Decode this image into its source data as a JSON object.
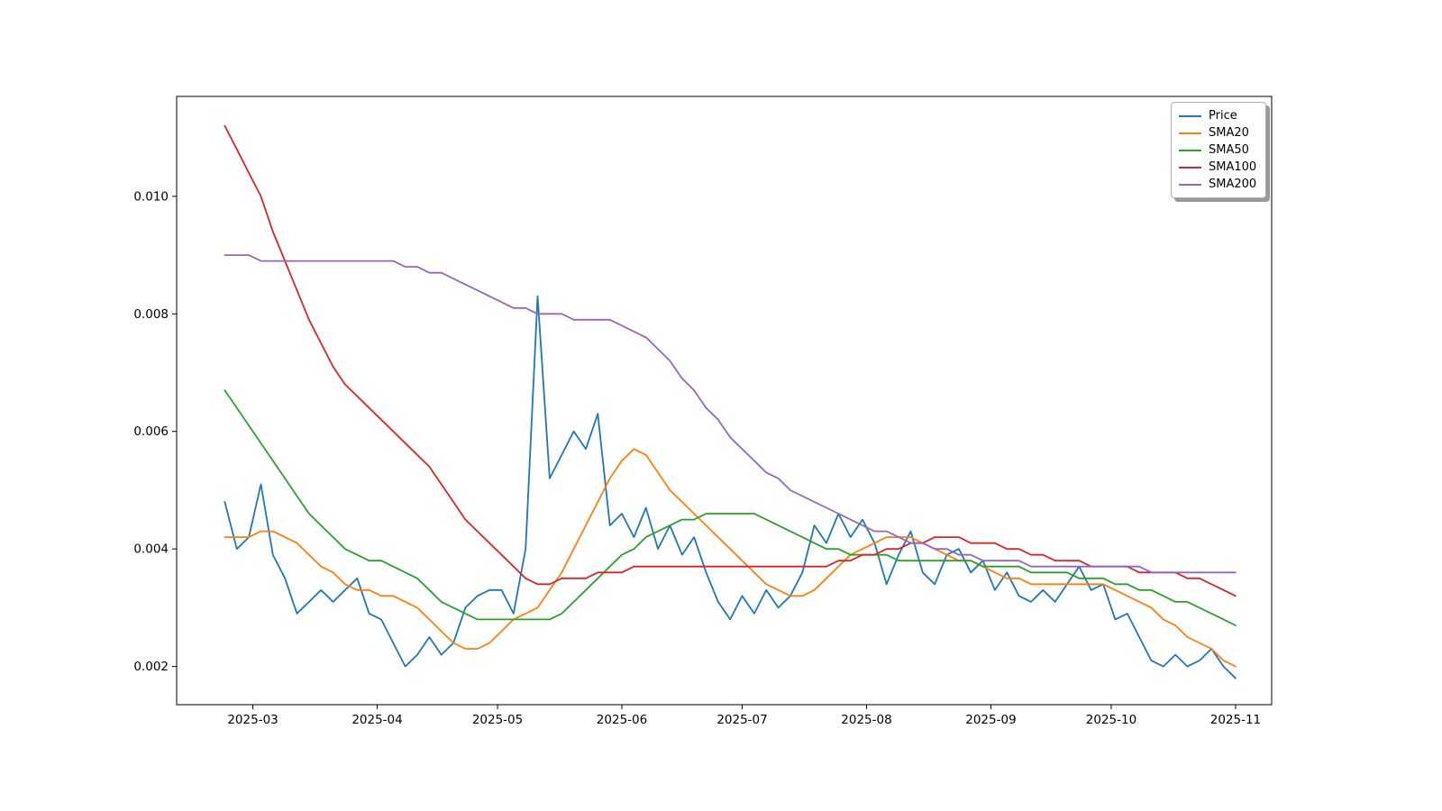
{
  "figure": {
    "background": "#ffffff",
    "plot_border_color": "#000000",
    "tick_color": "#000000"
  },
  "chart_data": {
    "type": "line",
    "title": "",
    "xlabel": "",
    "ylabel": "",
    "grid": false,
    "legend": {
      "position": "upper right",
      "entries": [
        "Price",
        "SMA20",
        "SMA50",
        "SMA100",
        "SMA200"
      ]
    },
    "xlim": [
      "2025-02-10",
      "2025-11-10"
    ],
    "ylim": [
      0.00135,
      0.0117
    ],
    "x_ticks": [
      {
        "label": "2025-03",
        "date": "2025-03-01"
      },
      {
        "label": "2025-04",
        "date": "2025-04-01"
      },
      {
        "label": "2025-05",
        "date": "2025-05-01"
      },
      {
        "label": "2025-06",
        "date": "2025-06-01"
      },
      {
        "label": "2025-07",
        "date": "2025-07-01"
      },
      {
        "label": "2025-08",
        "date": "2025-08-01"
      },
      {
        "label": "2025-09",
        "date": "2025-09-01"
      },
      {
        "label": "2025-10",
        "date": "2025-10-01"
      },
      {
        "label": "2025-11",
        "date": "2025-11-01"
      }
    ],
    "y_ticks": [
      {
        "label": "0.002",
        "value": 0.002
      },
      {
        "label": "0.004",
        "value": 0.004
      },
      {
        "label": "0.006",
        "value": 0.006
      },
      {
        "label": "0.008",
        "value": 0.008
      },
      {
        "label": "0.010",
        "value": 0.01
      }
    ],
    "x": [
      "2025-02-22",
      "2025-02-25",
      "2025-02-28",
      "2025-03-03",
      "2025-03-06",
      "2025-03-09",
      "2025-03-12",
      "2025-03-15",
      "2025-03-18",
      "2025-03-21",
      "2025-03-24",
      "2025-03-27",
      "2025-03-30",
      "2025-04-02",
      "2025-04-05",
      "2025-04-08",
      "2025-04-11",
      "2025-04-14",
      "2025-04-17",
      "2025-04-20",
      "2025-04-23",
      "2025-04-26",
      "2025-04-29",
      "2025-05-02",
      "2025-05-05",
      "2025-05-08",
      "2025-05-11",
      "2025-05-14",
      "2025-05-17",
      "2025-05-20",
      "2025-05-23",
      "2025-05-26",
      "2025-05-29",
      "2025-06-01",
      "2025-06-04",
      "2025-06-07",
      "2025-06-10",
      "2025-06-13",
      "2025-06-16",
      "2025-06-19",
      "2025-06-22",
      "2025-06-25",
      "2025-06-28",
      "2025-07-01",
      "2025-07-04",
      "2025-07-07",
      "2025-07-10",
      "2025-07-13",
      "2025-07-16",
      "2025-07-19",
      "2025-07-22",
      "2025-07-25",
      "2025-07-28",
      "2025-07-31",
      "2025-08-03",
      "2025-08-06",
      "2025-08-09",
      "2025-08-12",
      "2025-08-15",
      "2025-08-18",
      "2025-08-21",
      "2025-08-24",
      "2025-08-27",
      "2025-08-30",
      "2025-09-02",
      "2025-09-05",
      "2025-09-08",
      "2025-09-11",
      "2025-09-14",
      "2025-09-17",
      "2025-09-20",
      "2025-09-23",
      "2025-09-26",
      "2025-09-29",
      "2025-10-02",
      "2025-10-05",
      "2025-10-08",
      "2025-10-11",
      "2025-10-14",
      "2025-10-17",
      "2025-10-20",
      "2025-10-23",
      "2025-10-26",
      "2025-10-29",
      "2025-11-01"
    ],
    "series": [
      {
        "name": "Price",
        "color": "#1f77b4",
        "values": [
          0.0048,
          0.004,
          0.0042,
          0.0051,
          0.0039,
          0.0035,
          0.0029,
          0.0031,
          0.0033,
          0.0031,
          0.0033,
          0.0035,
          0.0029,
          0.0028,
          0.0024,
          0.002,
          0.0022,
          0.0025,
          0.0022,
          0.0024,
          0.003,
          0.0032,
          0.0033,
          0.0033,
          0.0029,
          0.004,
          0.0083,
          0.0052,
          0.0056,
          0.006,
          0.0057,
          0.0063,
          0.0044,
          0.0046,
          0.0042,
          0.0047,
          0.004,
          0.0044,
          0.0039,
          0.0042,
          0.0036,
          0.0031,
          0.0028,
          0.0032,
          0.0029,
          0.0033,
          0.003,
          0.0032,
          0.0036,
          0.0044,
          0.0041,
          0.0046,
          0.0042,
          0.0045,
          0.0041,
          0.0034,
          0.0039,
          0.0043,
          0.0036,
          0.0034,
          0.0039,
          0.004,
          0.0036,
          0.0038,
          0.0033,
          0.0036,
          0.0032,
          0.0031,
          0.0033,
          0.0031,
          0.0034,
          0.0037,
          0.0033,
          0.0034,
          0.0028,
          0.0029,
          0.0025,
          0.0021,
          0.002,
          0.0022,
          0.002,
          0.0021,
          0.0023,
          0.002,
          0.0018
        ]
      },
      {
        "name": "SMA20",
        "color": "#ff7f0e",
        "values": [
          0.0042,
          0.0042,
          0.0042,
          0.0043,
          0.0043,
          0.0042,
          0.0041,
          0.0039,
          0.0037,
          0.0036,
          0.0034,
          0.0033,
          0.0033,
          0.0032,
          0.0032,
          0.0031,
          0.003,
          0.0028,
          0.0026,
          0.0024,
          0.0023,
          0.0023,
          0.0024,
          0.0026,
          0.0028,
          0.0029,
          0.003,
          0.0033,
          0.0036,
          0.004,
          0.0044,
          0.0048,
          0.0052,
          0.0055,
          0.0057,
          0.0056,
          0.0053,
          0.005,
          0.0048,
          0.0046,
          0.0044,
          0.0042,
          0.004,
          0.0038,
          0.0036,
          0.0034,
          0.0033,
          0.0032,
          0.0032,
          0.0033,
          0.0035,
          0.0037,
          0.0039,
          0.004,
          0.0041,
          0.0042,
          0.0042,
          0.0042,
          0.0041,
          0.004,
          0.0039,
          0.0038,
          0.0038,
          0.0037,
          0.0036,
          0.0035,
          0.0035,
          0.0034,
          0.0034,
          0.0034,
          0.0034,
          0.0034,
          0.0034,
          0.0034,
          0.0033,
          0.0032,
          0.0031,
          0.003,
          0.0028,
          0.0027,
          0.0025,
          0.0024,
          0.0023,
          0.0021,
          0.002
        ]
      },
      {
        "name": "SMA50",
        "color": "#2ca02c",
        "values": [
          0.0067,
          0.0064,
          0.0061,
          0.0058,
          0.0055,
          0.0052,
          0.0049,
          0.0046,
          0.0044,
          0.0042,
          0.004,
          0.0039,
          0.0038,
          0.0038,
          0.0037,
          0.0036,
          0.0035,
          0.0033,
          0.0031,
          0.003,
          0.0029,
          0.0028,
          0.0028,
          0.0028,
          0.0028,
          0.0028,
          0.0028,
          0.0028,
          0.0029,
          0.0031,
          0.0033,
          0.0035,
          0.0037,
          0.0039,
          0.004,
          0.0042,
          0.0043,
          0.0044,
          0.0045,
          0.0045,
          0.0046,
          0.0046,
          0.0046,
          0.0046,
          0.0046,
          0.0045,
          0.0044,
          0.0043,
          0.0042,
          0.0041,
          0.004,
          0.004,
          0.0039,
          0.0039,
          0.0039,
          0.0039,
          0.0038,
          0.0038,
          0.0038,
          0.0038,
          0.0038,
          0.0038,
          0.0038,
          0.0037,
          0.0037,
          0.0037,
          0.0037,
          0.0036,
          0.0036,
          0.0036,
          0.0036,
          0.0035,
          0.0035,
          0.0035,
          0.0034,
          0.0034,
          0.0033,
          0.0033,
          0.0032,
          0.0031,
          0.0031,
          0.003,
          0.0029,
          0.0028,
          0.0027
        ]
      },
      {
        "name": "SMA100",
        "color": "#d62728",
        "values": [
          0.0112,
          0.0108,
          0.0104,
          0.01,
          0.0094,
          0.0089,
          0.0084,
          0.0079,
          0.0075,
          0.0071,
          0.0068,
          0.0066,
          0.0064,
          0.0062,
          0.006,
          0.0058,
          0.0056,
          0.0054,
          0.0051,
          0.0048,
          0.0045,
          0.0043,
          0.0041,
          0.0039,
          0.0037,
          0.0035,
          0.0034,
          0.0034,
          0.0035,
          0.0035,
          0.0035,
          0.0036,
          0.0036,
          0.0036,
          0.0037,
          0.0037,
          0.0037,
          0.0037,
          0.0037,
          0.0037,
          0.0037,
          0.0037,
          0.0037,
          0.0037,
          0.0037,
          0.0037,
          0.0037,
          0.0037,
          0.0037,
          0.0037,
          0.0037,
          0.0038,
          0.0038,
          0.0039,
          0.0039,
          0.004,
          0.004,
          0.0041,
          0.0041,
          0.0042,
          0.0042,
          0.0042,
          0.0041,
          0.0041,
          0.0041,
          0.004,
          0.004,
          0.0039,
          0.0039,
          0.0038,
          0.0038,
          0.0038,
          0.0037,
          0.0037,
          0.0037,
          0.0037,
          0.0036,
          0.0036,
          0.0036,
          0.0036,
          0.0035,
          0.0035,
          0.0034,
          0.0033,
          0.0032
        ]
      },
      {
        "name": "SMA200",
        "color": "#9467bd",
        "values": [
          0.009,
          0.009,
          0.009,
          0.0089,
          0.0089,
          0.0089,
          0.0089,
          0.0089,
          0.0089,
          0.0089,
          0.0089,
          0.0089,
          0.0089,
          0.0089,
          0.0089,
          0.0088,
          0.0088,
          0.0087,
          0.0087,
          0.0086,
          0.0085,
          0.0084,
          0.0083,
          0.0082,
          0.0081,
          0.0081,
          0.008,
          0.008,
          0.008,
          0.0079,
          0.0079,
          0.0079,
          0.0079,
          0.0078,
          0.0077,
          0.0076,
          0.0074,
          0.0072,
          0.0069,
          0.0067,
          0.0064,
          0.0062,
          0.0059,
          0.0057,
          0.0055,
          0.0053,
          0.0052,
          0.005,
          0.0049,
          0.0048,
          0.0047,
          0.0046,
          0.0045,
          0.0044,
          0.0043,
          0.0043,
          0.0042,
          0.0041,
          0.0041,
          0.004,
          0.004,
          0.0039,
          0.0039,
          0.0038,
          0.0038,
          0.0038,
          0.0038,
          0.0037,
          0.0037,
          0.0037,
          0.0037,
          0.0037,
          0.0037,
          0.0037,
          0.0037,
          0.0037,
          0.0037,
          0.0036,
          0.0036,
          0.0036,
          0.0036,
          0.0036,
          0.0036,
          0.0036,
          0.0036
        ]
      }
    ]
  }
}
